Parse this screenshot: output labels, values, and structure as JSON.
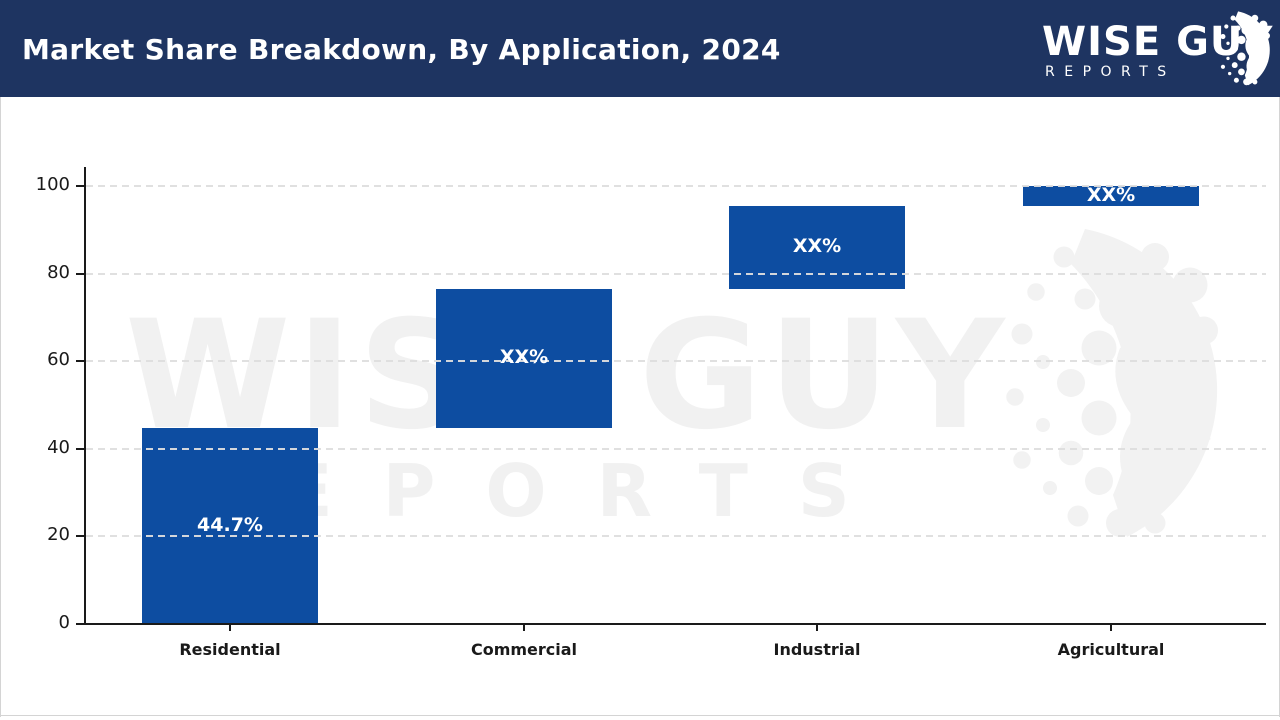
{
  "header": {
    "title": "Market Share Breakdown, By Application, 2024",
    "logo": {
      "line1": "WISE GUY",
      "line2": "REPORTS"
    }
  },
  "watermark": {
    "line1": "WISE GUY",
    "line2": "REPORTS"
  },
  "chart_data": {
    "type": "bar",
    "subtype": "floating-waterfall",
    "title": "Market Share Breakdown, By Application, 2024",
    "categories": [
      "Residential",
      "Commercial",
      "Industrial",
      "Agricultural"
    ],
    "bars": [
      {
        "category": "Residential",
        "base": 0,
        "value": 44.7,
        "top": 44.7,
        "label": "44.7%"
      },
      {
        "category": "Commercial",
        "base": 44.7,
        "value": 31.8,
        "top": 76.5,
        "label": "XX%"
      },
      {
        "category": "Industrial",
        "base": 76.5,
        "value": 19.0,
        "top": 95.5,
        "label": "XX%"
      },
      {
        "category": "Agricultural",
        "base": 95.5,
        "value": 4.5,
        "top": 100.0,
        "label": "XX%"
      }
    ],
    "xlabel": "",
    "ylabel": "",
    "ylim": [
      0,
      105
    ],
    "yticks": [
      0,
      20,
      40,
      60,
      80,
      100
    ],
    "grid": "horizontal-dashed-over-bars",
    "legend": "none"
  },
  "colors": {
    "header_bg": "#1e3461",
    "bar": "#0d4da1",
    "gridline": "#dedede",
    "axis": "#1a1a1a",
    "watermark": "#f1f1f1",
    "title_text": "#ffffff",
    "bar_label_text": "#ffffff",
    "tick_text": "#1a1a1a"
  }
}
